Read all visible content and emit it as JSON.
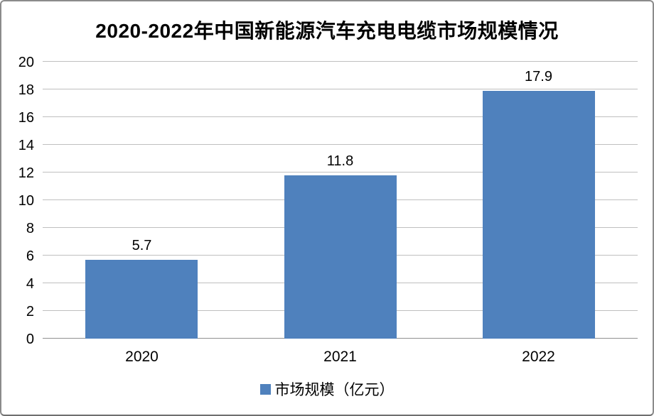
{
  "chart_data": {
    "type": "bar",
    "title": "2020-2022年中国新能源汽车充电电缆市场规模情况",
    "categories": [
      "2020",
      "2021",
      "2022"
    ],
    "series": [
      {
        "name": "市场规模（亿元）",
        "values": [
          5.7,
          11.8,
          17.9
        ]
      }
    ],
    "data_labels": [
      "5.7",
      "11.8",
      "17.9"
    ],
    "yticks": [
      0,
      2,
      4,
      6,
      8,
      10,
      12,
      14,
      16,
      18,
      20
    ],
    "ylim": [
      0,
      20
    ],
    "xlabel": "",
    "ylabel": "",
    "grid": true,
    "legend": {
      "label": "市场规模（亿元）",
      "position": "bottom"
    },
    "colors": {
      "bar": "#4f81bd",
      "gridline": "#bfbfbf",
      "axis_line": "#8f8f8f",
      "text": "#000000",
      "frame_border": "#8b8b8b",
      "background": "#ffffff"
    }
  }
}
